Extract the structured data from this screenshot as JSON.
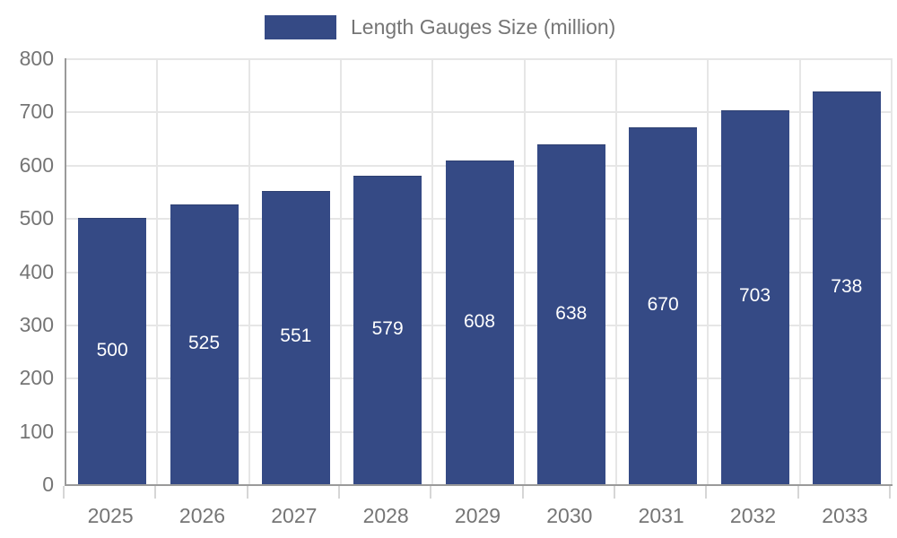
{
  "chart_data": {
    "type": "bar",
    "series_name": "Length Gauges Size (million)",
    "categories": [
      "2025",
      "2026",
      "2027",
      "2028",
      "2029",
      "2030",
      "2031",
      "2032",
      "2033"
    ],
    "values": [
      500,
      525,
      551,
      579,
      608,
      638,
      670,
      703,
      738
    ],
    "title": "",
    "xlabel": "",
    "ylabel": "",
    "ylim": [
      0,
      800
    ],
    "ytick_step": 100,
    "grid": true,
    "legend_position": "top",
    "bar_color": "#354a85",
    "value_label_color": "#ffffff",
    "axis_text_color": "#757575",
    "gridline_color": "#e6e6e6",
    "axis_line_color": "#9a9a9a"
  }
}
